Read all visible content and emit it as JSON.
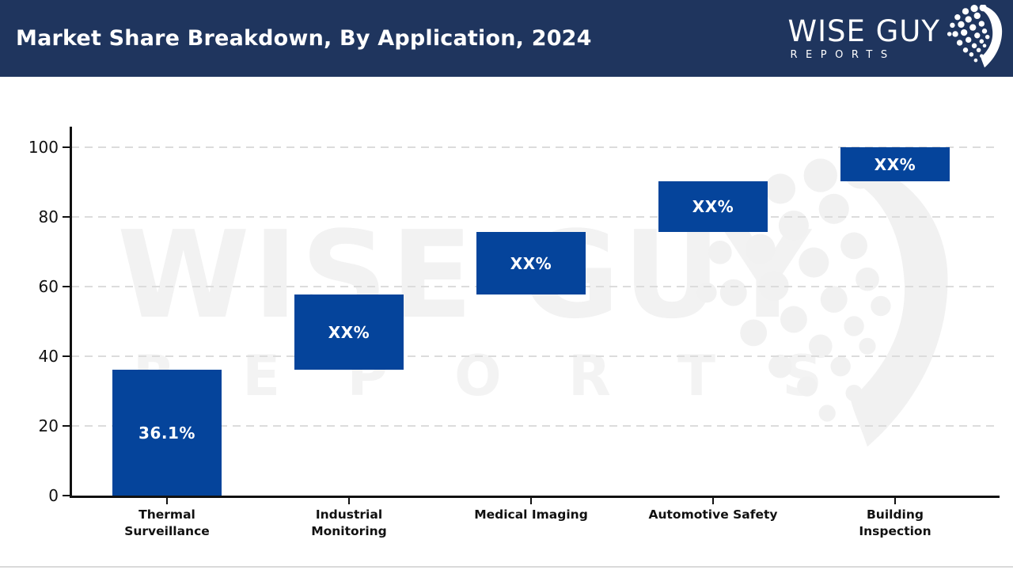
{
  "header": {
    "title": "Market Share Breakdown, By Application, 2024",
    "logo": {
      "wordmark": "WISE GUY",
      "subtitle": "REPORTS"
    }
  },
  "watermark": {
    "line1": "WISE GUY",
    "line2": "R E P O R T S"
  },
  "colors": {
    "header_bg": "#1f355e",
    "bar": "#05449b",
    "bar_label": "#ffffff",
    "axis": "#111111",
    "grid": "#dcdcdc",
    "watermark": "#f2f2f2"
  },
  "chart_data": {
    "type": "bar",
    "subtype": "waterfall",
    "title": "Market Share Breakdown, By Application, 2024",
    "categories": [
      "Thermal Surveillance",
      "Industrial Monitoring",
      "Medical Imaging",
      "Automotive Safety",
      "Building Inspection"
    ],
    "category_display": [
      "Thermal\nSurveillance",
      "Industrial\nMonitoring",
      "Medical Imaging",
      "Automotive Safety",
      "Building\nInspection"
    ],
    "series": [
      {
        "name": "Market share (%)",
        "segments": [
          {
            "category": "Thermal Surveillance",
            "start": 0,
            "end": 36.1,
            "label": "36.1%"
          },
          {
            "category": "Industrial Monitoring",
            "start": 36.1,
            "end": 57.7,
            "label": "XX%"
          },
          {
            "category": "Medical Imaging",
            "start": 57.7,
            "end": 75.7,
            "label": "XX%"
          },
          {
            "category": "Automotive Safety",
            "start": 75.7,
            "end": 90.2,
            "label": "XX%"
          },
          {
            "category": "Building Inspection",
            "start": 90.2,
            "end": 100,
            "label": "XX%"
          }
        ]
      }
    ],
    "xlabel": "",
    "ylabel": "",
    "ylim": [
      0,
      100
    ],
    "yticks": [
      0,
      20,
      40,
      60,
      80,
      100
    ],
    "grid": "horizontal-dashed",
    "legend": "none"
  }
}
